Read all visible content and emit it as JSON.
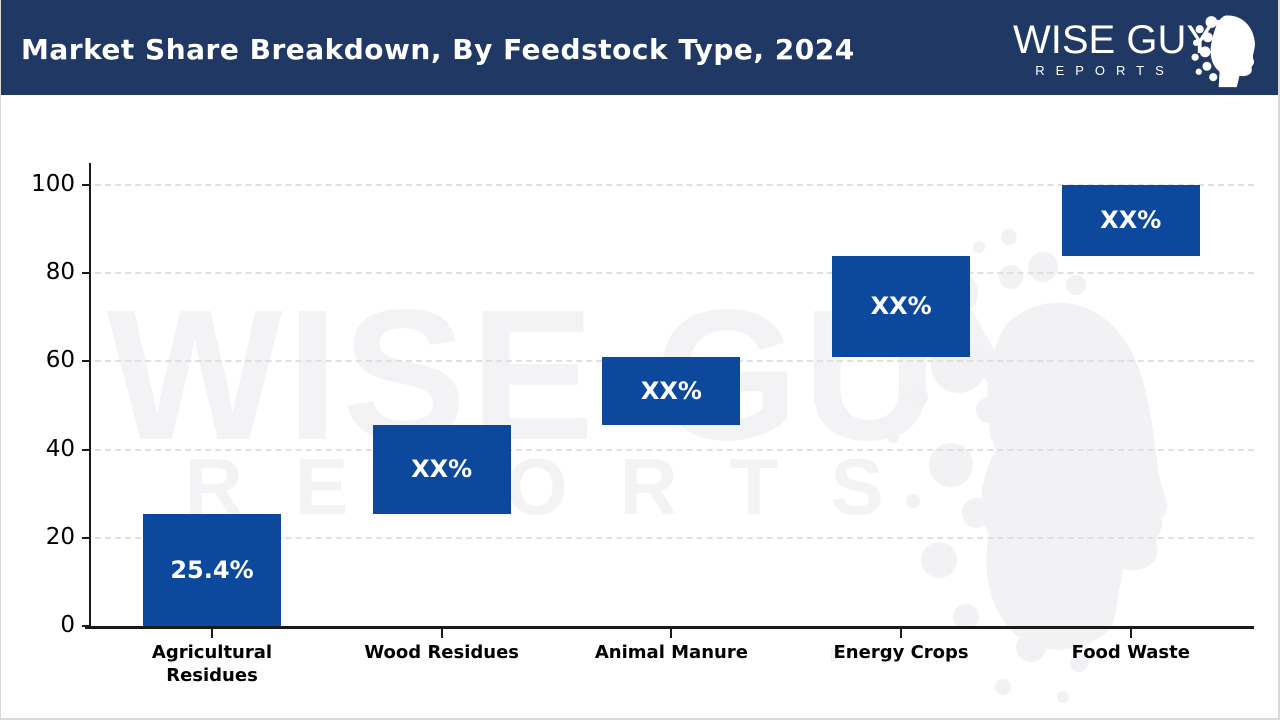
{
  "header": {
    "title": "Market Share Breakdown, By Feedstock Type, 2024",
    "logo_line1": "WISE GUY",
    "logo_line2": "REPORTS"
  },
  "watermark": {
    "line1": "WISE GUY",
    "line2": "REPORTS"
  },
  "chart_data": {
    "type": "bar",
    "variant": "waterfall",
    "title": "Market Share Breakdown, By Feedstock Type, 2024",
    "categories": [
      "Agricultural Residues",
      "Wood Residues",
      "Animal Manure",
      "Energy Crops",
      "Food Waste"
    ],
    "segments": [
      {
        "category": "Agricultural Residues",
        "start": 0,
        "end": 25.4,
        "label": "25.4%"
      },
      {
        "category": "Wood Residues",
        "start": 25.4,
        "end": 45.6,
        "label": "XX%"
      },
      {
        "category": "Animal Manure",
        "start": 45.6,
        "end": 60.9,
        "label": "XX%"
      },
      {
        "category": "Energy Crops",
        "start": 60.9,
        "end": 84.0,
        "label": "XX%"
      },
      {
        "category": "Food Waste",
        "start": 84.0,
        "end": 100.0,
        "label": "XX%"
      }
    ],
    "yticks": [
      0,
      20,
      40,
      60,
      80,
      100
    ],
    "ylim": [
      0,
      105
    ],
    "xlabel": "",
    "ylabel": "",
    "legend": "none",
    "grid": "horizontal-dashed",
    "bar_color": "#0c489c",
    "bar_label_color": "#ffffff",
    "axis_color": "#1a1a1a",
    "gridline_color": "#e0e0e0",
    "header_color": "#1f3864",
    "watermark_color": "#f3f3f5"
  }
}
